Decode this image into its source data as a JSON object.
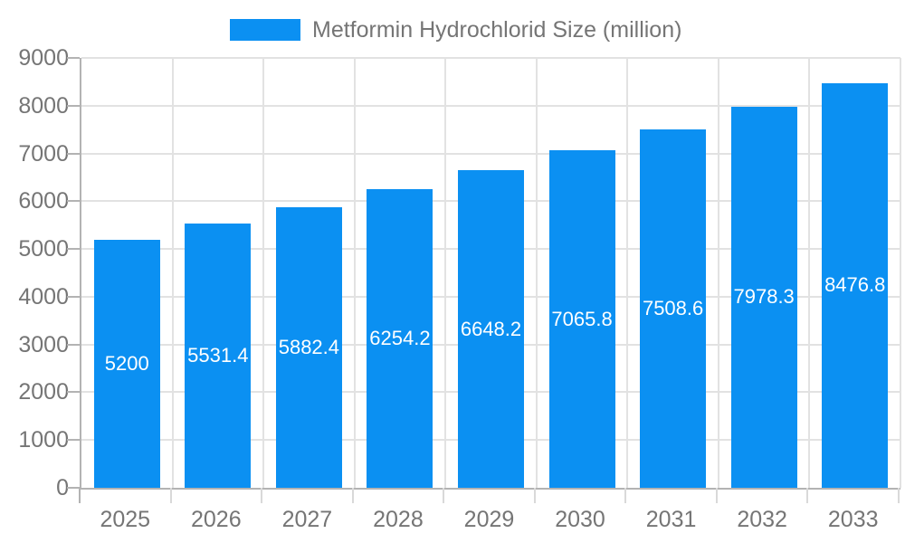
{
  "legend": {
    "label": "Metformin Hydrochlorid Size (million)",
    "swatch_color": "#0b90f2"
  },
  "chart_data": {
    "type": "bar",
    "title": "Metformin Hydrochlorid Size (million)",
    "categories": [
      "2025",
      "2026",
      "2027",
      "2028",
      "2029",
      "2030",
      "2031",
      "2032",
      "2033"
    ],
    "values": [
      5200,
      5531.4,
      5882.4,
      6254.2,
      6648.2,
      7065.8,
      7508.6,
      7978.3,
      8476.8
    ],
    "value_labels": [
      "5200",
      "5531.4",
      "5882.4",
      "6254.2",
      "6648.2",
      "7065.8",
      "7508.6",
      "7978.3",
      "8476.8"
    ],
    "xlabel": "",
    "ylabel": "",
    "ylim": [
      0,
      9000
    ],
    "ytick_step": 1000,
    "ytick_labels": [
      "0",
      "1000",
      "2000",
      "3000",
      "4000",
      "5000",
      "6000",
      "7000",
      "8000",
      "9000"
    ],
    "grid": true,
    "legend_position": "top-center",
    "value_label_position": "inside-middle",
    "colors": {
      "bar": "#0b90f2",
      "value_label_text": "#ffffff",
      "axis_text": "#757575",
      "gridline": "#e2e2e2",
      "axis_line": "#b3b3b3",
      "tick": "#d9d9d9"
    }
  }
}
